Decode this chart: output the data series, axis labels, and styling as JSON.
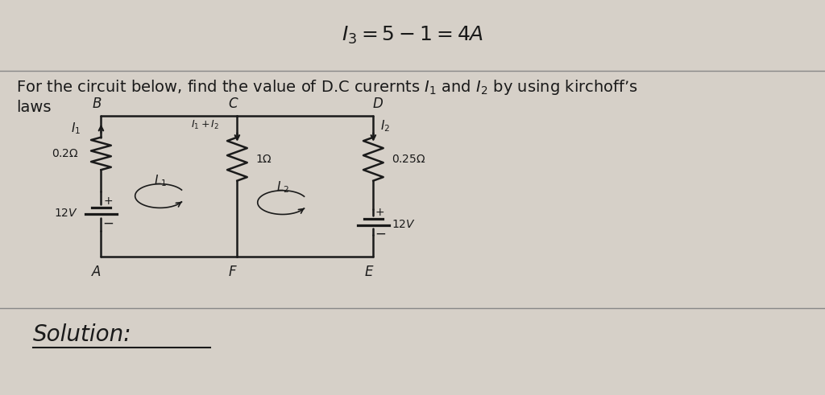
{
  "background_color": "#d6d0c8",
  "top_section_bg": "#d6d0c8",
  "middle_section_bg": "#f0ede8",
  "bottom_section_bg": "#f0ede8",
  "title_text": "$I_3 = 5 - 1 = 4A$",
  "problem_text_line1": "For the circuit below, find the value of D.C curernts $I_1$ and $I_2$ by using kirchoff’s",
  "problem_text_line2": "laws",
  "solution_text": "Solution:",
  "text_color": "#1a1a1a",
  "circuit_color": "#1a1a1a",
  "line_width": 1.8,
  "font_size_title": 18,
  "font_size_problem": 14,
  "font_size_circuit": 11,
  "font_size_solution": 20
}
